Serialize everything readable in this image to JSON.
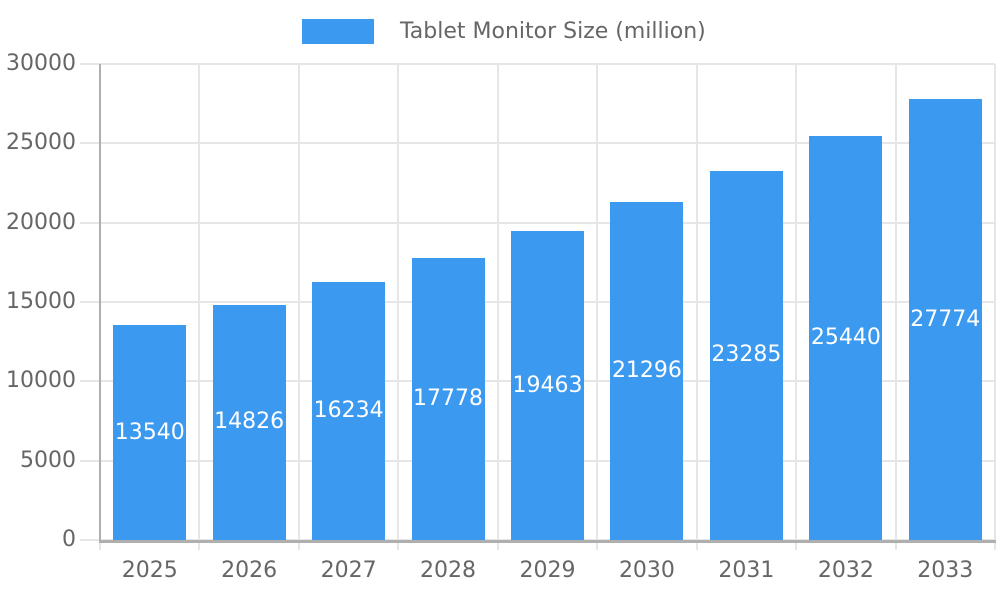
{
  "legend": {
    "label": "Tablet Monitor Size (million)"
  },
  "chart_data": {
    "type": "bar",
    "title": "",
    "series_name": "Tablet Monitor Size (million)",
    "categories": [
      "2025",
      "2026",
      "2027",
      "2028",
      "2029",
      "2030",
      "2031",
      "2032",
      "2033"
    ],
    "values": [
      13540,
      14826,
      16234,
      17778,
      19463,
      21296,
      23285,
      25440,
      27774
    ],
    "value_labels": [
      "13540",
      "14826",
      "16234",
      "17778",
      "19463",
      "21296",
      "23285",
      "25440",
      "27774"
    ],
    "xlabel": "",
    "ylabel": "",
    "ylim": [
      0,
      30000
    ],
    "yticks": [
      0,
      5000,
      10000,
      15000,
      20000,
      25000,
      30000
    ],
    "ytick_labels": [
      "0",
      "5000",
      "10000",
      "15000",
      "20000",
      "25000",
      "30000"
    ],
    "grid": true,
    "legend_position": "top",
    "colors": {
      "bar": "#3B99F0",
      "grid_line": "#E6E6E6",
      "axis_line": "#AFAFAF",
      "axis_text": "#666666",
      "value_text": "#FFFFFF",
      "background": "#FFFFFF"
    }
  }
}
